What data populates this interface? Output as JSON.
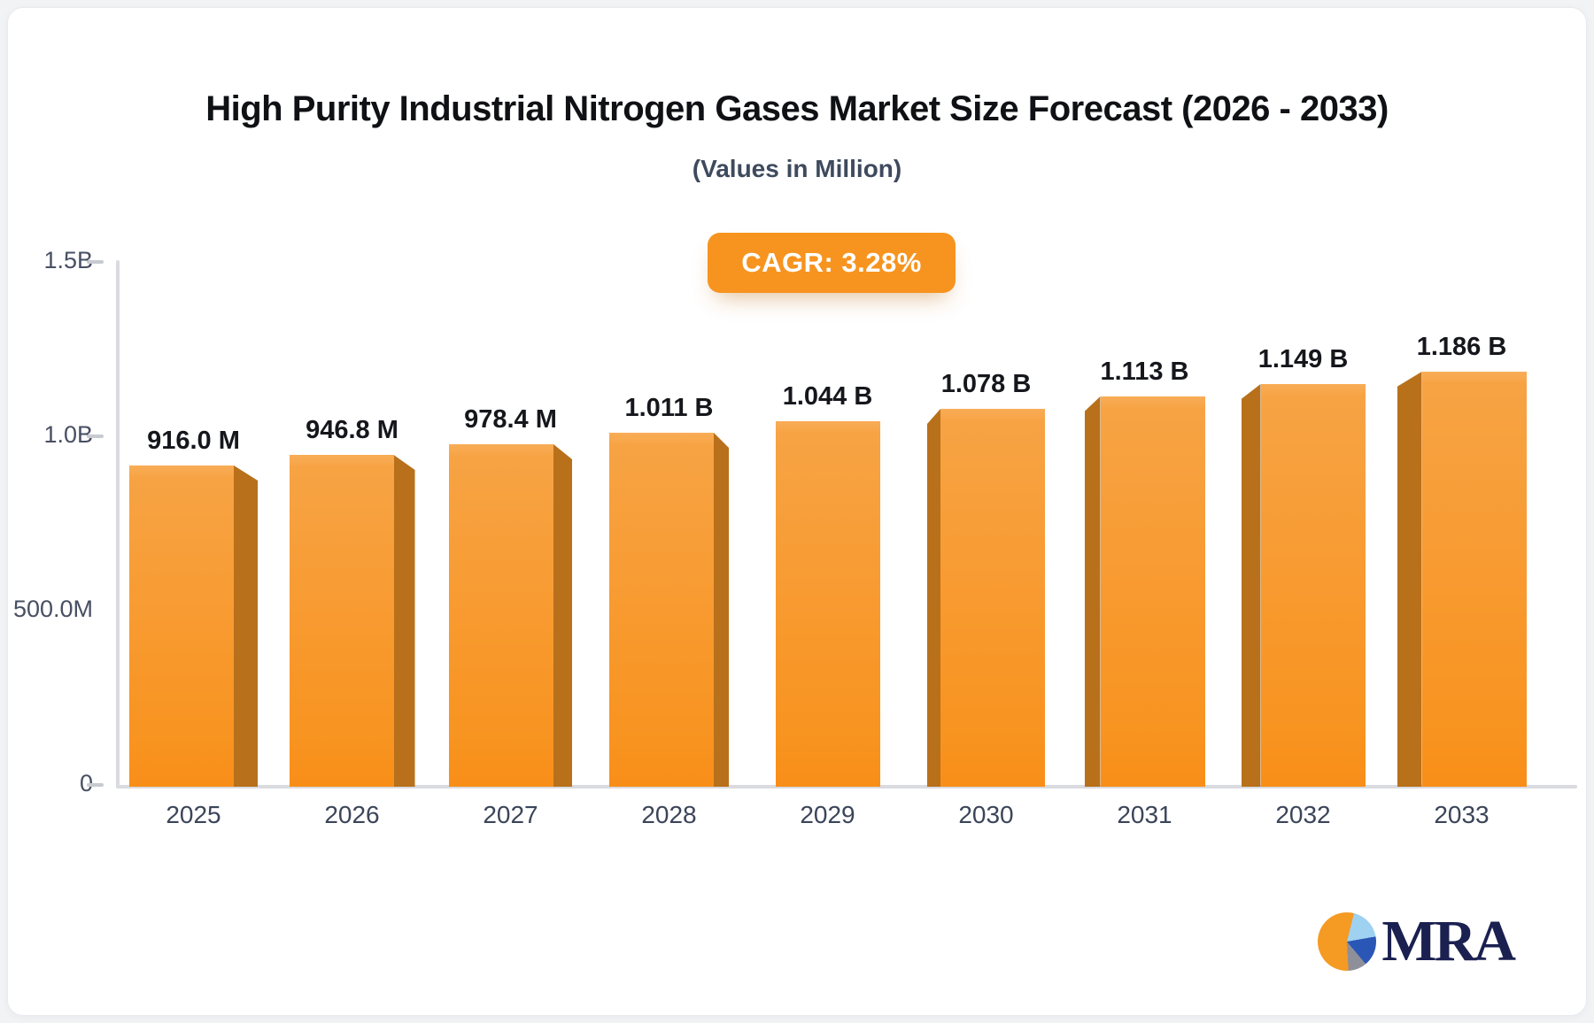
{
  "header": {
    "title": "High Purity Industrial Nitrogen Gases Market Size Forecast (2026 - 2033)",
    "subtitle": "(Values in Million)"
  },
  "badge": {
    "label": "CAGR: 3.28%",
    "color": "#f7941f"
  },
  "chart_data": {
    "type": "bar",
    "title": "High Purity Industrial Nitrogen Gases Market Size Forecast (2026 - 2033)",
    "subtitle": "(Values in Million)",
    "categories": [
      "2025",
      "2026",
      "2027",
      "2028",
      "2029",
      "2030",
      "2031",
      "2032",
      "2033"
    ],
    "values_million": [
      916.0,
      946.8,
      978.4,
      1011,
      1044,
      1078,
      1113,
      1149,
      1186
    ],
    "bar_labels": [
      "916.0 M",
      "946.8 M",
      "978.4 M",
      "1.011 B",
      "1.044 B",
      "1.078 B",
      "1.113 B",
      "1.149 B",
      "1.186 B"
    ],
    "xlabel": "",
    "ylabel": "",
    "ylim_million": [
      0,
      1500
    ],
    "y_ticks": [
      {
        "label": "1.5B",
        "value_million": 1500,
        "dash": true
      },
      {
        "label": "1.0B",
        "value_million": 1000,
        "dash": true
      },
      {
        "label": "500.0M",
        "value_million": 500,
        "dash": false
      },
      {
        "label": "0",
        "value_million": 0,
        "dash": true
      }
    ],
    "grid": false,
    "legend": false,
    "bar_color": "#f8931f",
    "bar_color_light": "#f9ad57",
    "bar_side_color": "#b8701b",
    "cagr": "3.28%"
  },
  "logo": {
    "text": "MRA"
  }
}
